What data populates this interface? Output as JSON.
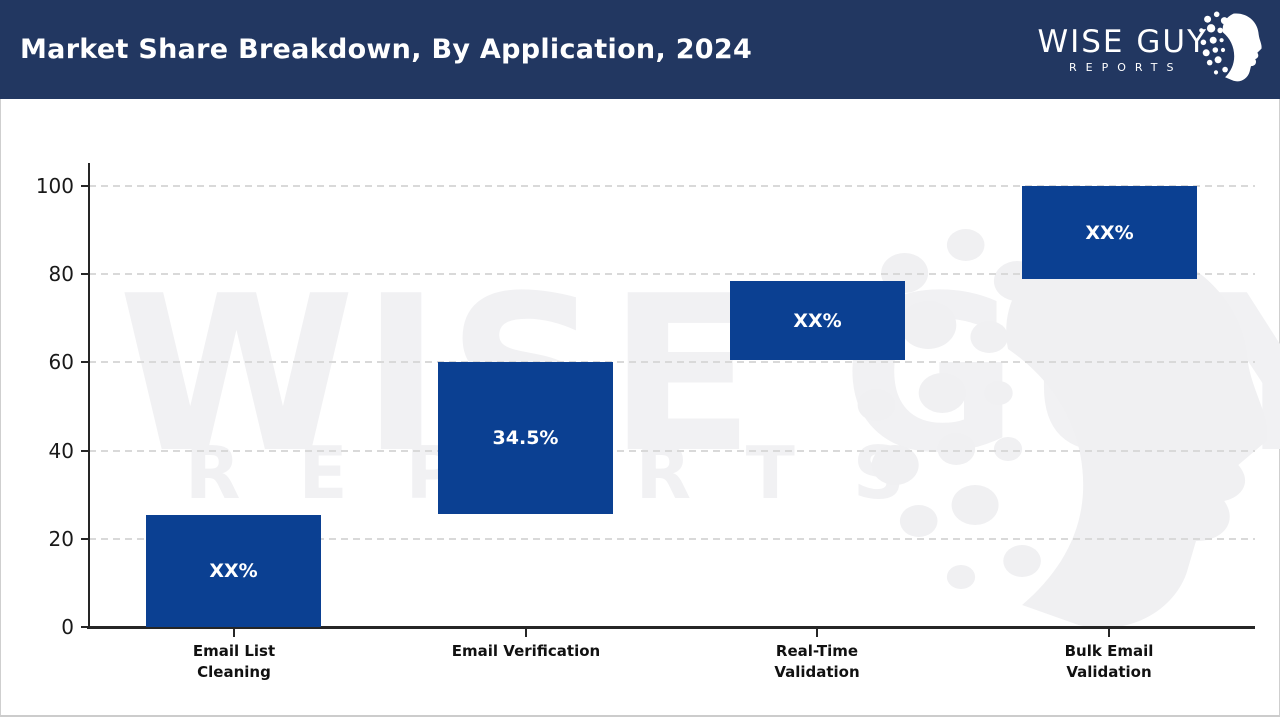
{
  "header": {
    "title": "Market Share Breakdown, By Application, 2024",
    "brand": {
      "name": "WISE GUY",
      "sub": "REPORTS"
    }
  },
  "watermark": {
    "name": "WISE GUY",
    "sub": "REPORTS"
  },
  "chart_data": {
    "type": "bar",
    "subtype": "floating-waterfall",
    "title": "Market Share Breakdown, By Application, 2024",
    "categories": [
      "Email List\nCleaning",
      "Email Verification",
      "Real-Time\nValidation",
      "Bulk Email\nValidation"
    ],
    "series": [
      {
        "name": "Market Share (%)",
        "segments": [
          {
            "category": "Email List Cleaning",
            "from": 0,
            "to": 25.5,
            "label": "XX%"
          },
          {
            "category": "Email Verification",
            "from": 25.5,
            "to": 60,
            "label": "34.5%"
          },
          {
            "category": "Real-Time Validation",
            "from": 60.5,
            "to": 78.5,
            "label": "XX%"
          },
          {
            "category": "Bulk Email Validation",
            "from": 79,
            "to": 100,
            "label": "XX%"
          }
        ]
      }
    ],
    "xlabel": "",
    "ylabel": "",
    "ylim": [
      0,
      105
    ],
    "yticks": [
      0,
      20,
      40,
      60,
      80,
      100
    ],
    "grid": "horizontal-dashed",
    "legend": "none",
    "colors": {
      "bar": "#0b4092",
      "header_bg": "#223761",
      "grid": "#d9d9d9",
      "axis": "#262626",
      "watermark": "#f0f0f2",
      "title_text": "#ffffff",
      "bar_label_text": "#ffffff"
    }
  }
}
